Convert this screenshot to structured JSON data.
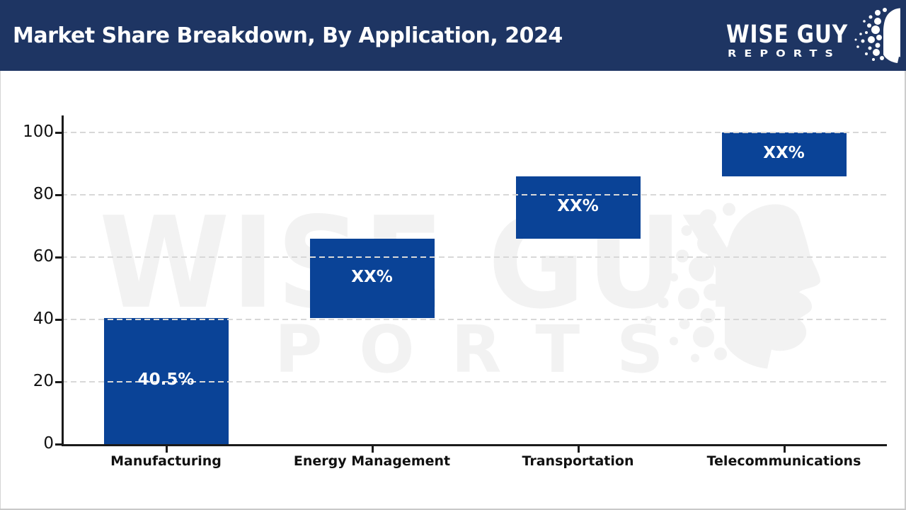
{
  "header": {
    "title": "Market Share Breakdown, By Application, 2024",
    "logo": {
      "name": "WISE GUY",
      "sub": "REPORTS"
    }
  },
  "watermark": {
    "line1": "WISE GUY.",
    "line2": "PORTS"
  },
  "chart_data": {
    "type": "bar",
    "subtype": "waterfall",
    "title": "Market Share Breakdown, By Application, 2024",
    "categories": [
      "Manufacturing",
      "Energy Management",
      "Transportation",
      "Telecommunications"
    ],
    "segments": [
      {
        "category": "Manufacturing",
        "start": 0,
        "end": 40.5,
        "display_label": "40.5%"
      },
      {
        "category": "Energy Management",
        "start": 40.5,
        "end": 66,
        "display_label": "XX%"
      },
      {
        "category": "Transportation",
        "start": 66,
        "end": 86,
        "display_label": "XX%"
      },
      {
        "category": "Telecommunications",
        "start": 86,
        "end": 100,
        "display_label": "XX%"
      }
    ],
    "y_ticks": [
      0,
      20,
      40,
      60,
      80,
      100
    ],
    "ylim": [
      0,
      105
    ],
    "xlabel": "",
    "ylabel": "",
    "grid": "dashed horizontal",
    "legend": "none",
    "bar_color": "#0a4397",
    "bar_label_color": "#ffffff"
  },
  "colors": {
    "header_bg": "#1e3563",
    "bar_blue": "#0a4397",
    "gridline": "#d8d8d8",
    "watermark": "#f2f2f2",
    "axis": "#1a1a1a"
  }
}
